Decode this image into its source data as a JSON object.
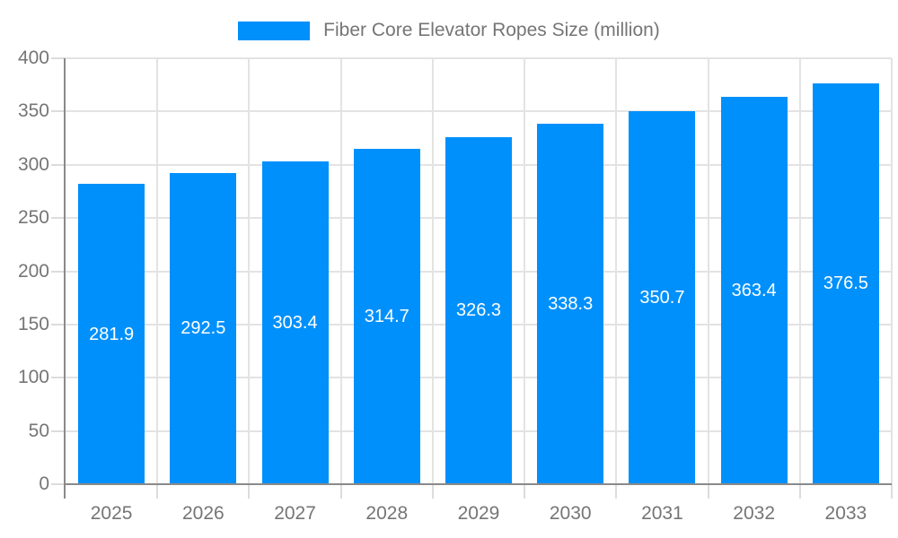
{
  "legend": {
    "label": "Fiber Core Elevator Ropes Size (million)",
    "swatch_color": "#0090FB"
  },
  "chart_data": {
    "type": "bar",
    "title": "Fiber Core Elevator Ropes Size (million)",
    "categories": [
      "2025",
      "2026",
      "2027",
      "2028",
      "2029",
      "2030",
      "2031",
      "2032",
      "2033"
    ],
    "series": [
      {
        "name": "Fiber Core Elevator Ropes Size (million)",
        "values": [
          281.9,
          292.5,
          303.4,
          314.7,
          326.3,
          338.3,
          350.7,
          363.4,
          376.5
        ]
      }
    ],
    "value_labels": [
      "281.9",
      "292.5",
      "303.4",
      "314.7",
      "326.3",
      "338.3",
      "350.7",
      "363.4",
      "376.5"
    ],
    "xlabel": "",
    "ylabel": "",
    "ylim": [
      0,
      400
    ],
    "yticks": [
      0,
      50,
      100,
      150,
      200,
      250,
      300,
      350,
      400
    ],
    "grid": true,
    "legend_position": "top-center",
    "value_label_position": "inside-center",
    "colors": {
      "bar": "#0090FB",
      "value_label": "#FFFFFF",
      "axis_text": "#757575",
      "axis_line": "#8A8A8A",
      "gridline": "#E3E3E3",
      "background": "#FFFFFF"
    }
  }
}
